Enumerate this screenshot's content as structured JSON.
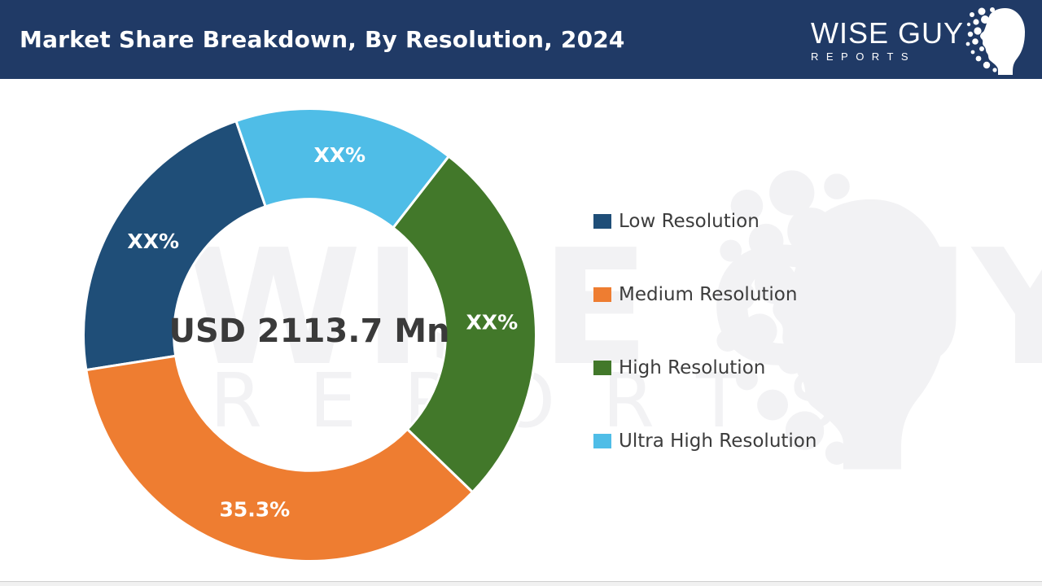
{
  "header": {
    "title": "Market Share Breakdown, By Resolution, 2024",
    "logo": {
      "line1": "WISE GUY",
      "line2": "REPORTS"
    }
  },
  "watermark": {
    "line1": "WISE GUY",
    "line2": "REPORTS"
  },
  "center_label": "USD 2113.7 Mn",
  "colors": {
    "header_bg": "#203a66",
    "canvas_bg": "#ffffff",
    "footer_bg": "#f1f1f1",
    "watermark": "#f2f2f4",
    "center_text": "#3a3a3a",
    "legend_text": "#3c3c3c",
    "segment_label_text": "#ffffff"
  },
  "chart_data": {
    "type": "pie",
    "subtype": "donut",
    "title": "Market Share Breakdown, By Resolution, 2024",
    "center_total": "USD 2113.7 Mn",
    "start_angle_deg": 109,
    "direction": "counterclockwise",
    "inner_radius_ratio": 0.6,
    "legend_position": "right",
    "segments": [
      {
        "name": "Low Resolution",
        "color": "#1f4e78",
        "value_pct": 22.2,
        "shown_label": "XX%"
      },
      {
        "name": "Medium Resolution",
        "color": "#ee7d31",
        "value_pct": 35.3,
        "shown_label": "35.3%"
      },
      {
        "name": "High Resolution",
        "color": "#42782a",
        "value_pct": 26.7,
        "shown_label": "XX%"
      },
      {
        "name": "Ultra High Resolution",
        "color": "#4fbde7",
        "value_pct": 15.8,
        "shown_label": "XX%"
      }
    ],
    "note": "value_pct for XX% slices estimated from arc angles; only 35.3% printed on chart"
  }
}
